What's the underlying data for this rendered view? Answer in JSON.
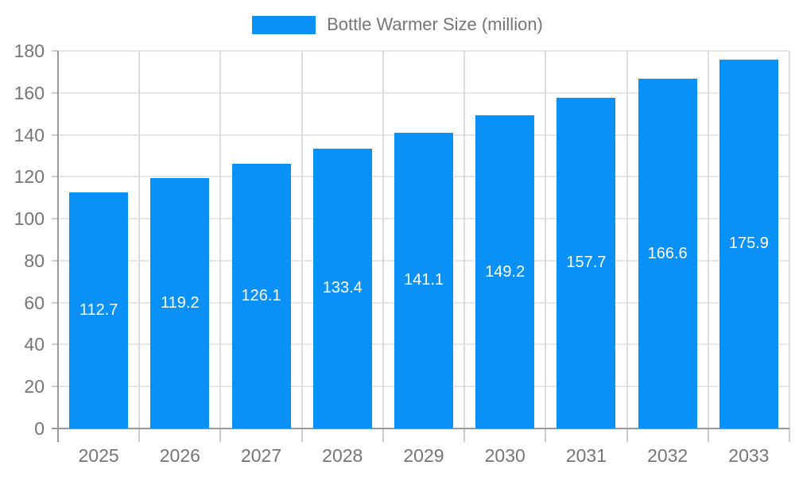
{
  "legend": {
    "label": "Bottle Warmer Size (million)"
  },
  "colors": {
    "bar": "#0991f7",
    "axis": "#999999",
    "grid_horizontal": "#e7e7e7",
    "grid_vertical": "#dcdcdc",
    "axis_tick": "#cccccc",
    "tick_label": "#757575",
    "value_label": "#ffffff",
    "background": "#ffffff"
  },
  "chart_data": {
    "type": "bar",
    "categories": [
      "2025",
      "2026",
      "2027",
      "2028",
      "2029",
      "2030",
      "2031",
      "2032",
      "2033"
    ],
    "series": [
      {
        "name": "Bottle Warmer Size (million)",
        "values": [
          112.7,
          119.2,
          126.1,
          133.4,
          141.1,
          149.2,
          157.7,
          166.6,
          175.9
        ]
      }
    ],
    "title": "",
    "xlabel": "",
    "ylabel": "",
    "ylim": [
      0,
      180
    ],
    "yticks": [
      0,
      20,
      40,
      60,
      80,
      100,
      120,
      140,
      160,
      180
    ],
    "grid": true,
    "legend_position": "top-center",
    "value_label_position": "inside-center"
  }
}
